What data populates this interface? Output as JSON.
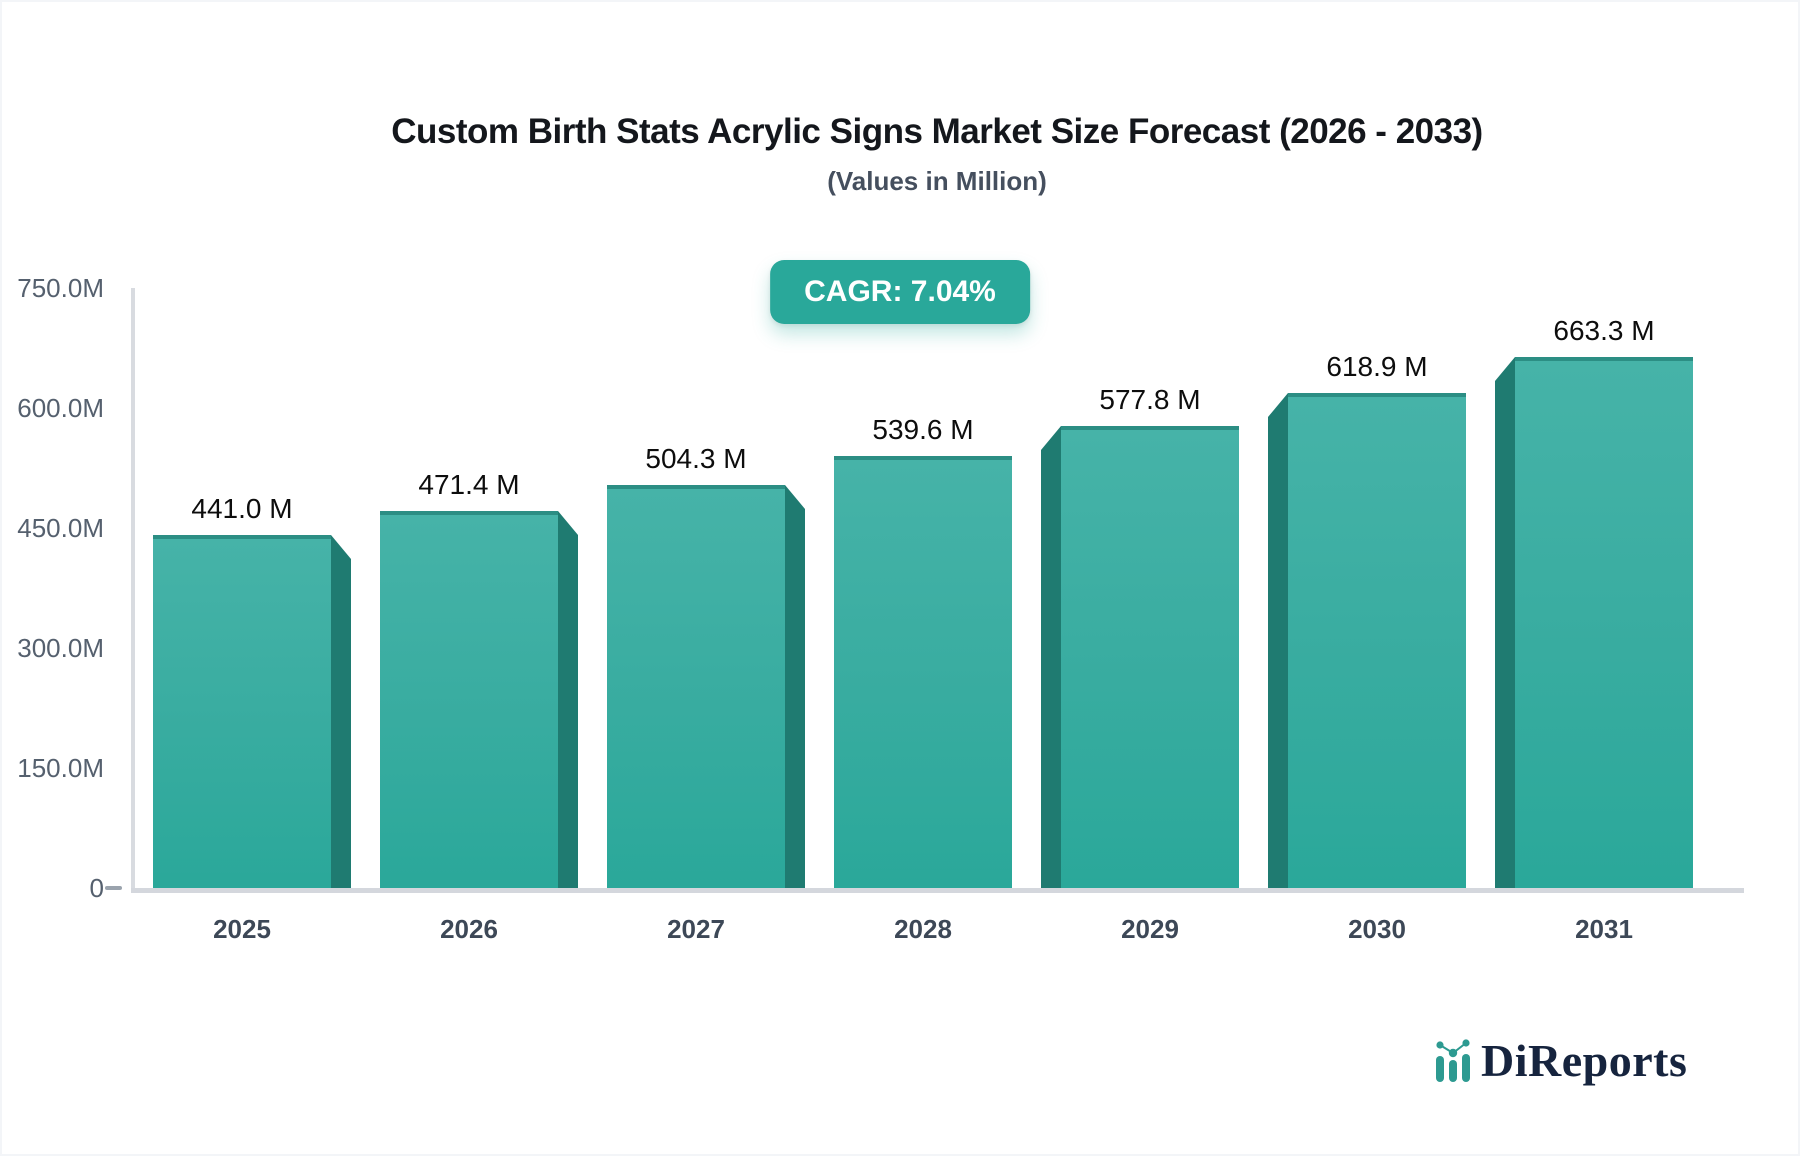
{
  "header": {
    "title": "Custom Birth Stats Acrylic Signs Market Size Forecast (2026 - 2033)",
    "subtitle": "(Values in Million)",
    "cagr_badge": "CAGR: 7.04%"
  },
  "chart_data": {
    "type": "bar",
    "title": "Custom Birth Stats Acrylic Signs Market Size Forecast (2026 - 2033)",
    "subtitle": "(Values in Million)",
    "cagr_percent": "7.04%",
    "categories": [
      "2025",
      "2026",
      "2027",
      "2028",
      "2029",
      "2030",
      "2031"
    ],
    "values": [
      441.0,
      471.4,
      504.3,
      539.6,
      577.8,
      618.9,
      663.3
    ],
    "value_labels": [
      "441.0 M",
      "471.4 M",
      "504.3 M",
      "539.6 M",
      "577.8 M",
      "618.9 M",
      "663.3 M"
    ],
    "y_ticks": [
      {
        "label": "750.0M",
        "value": 750
      },
      {
        "label": "600.0M",
        "value": 600
      },
      {
        "label": "450.0M",
        "value": 450
      },
      {
        "label": "300.0M",
        "value": 300
      },
      {
        "label": "150.0M",
        "value": 150
      },
      {
        "label": "0",
        "value": 0
      }
    ],
    "ylim": [
      0,
      750
    ],
    "xlabel": "",
    "ylabel": "",
    "grid": false,
    "legend": false,
    "style": "3d-bars, perspective side shading toward center bar"
  },
  "footer": {
    "brand_name": "DiReports",
    "brand_icon": "mini-bar-chart-logo"
  },
  "colors": {
    "accent_teal": "#29a89a",
    "bar_face_top": "#46b3a8",
    "bar_face_bottom": "#2aa89a",
    "bar_side": "#1f7b71",
    "bar_top_edge": "#2c8e84",
    "axis_line": "#d6d9de",
    "title_text": "#14171c",
    "subtitle_text": "#454f5e",
    "y_tick_text": "#55606e",
    "x_tick_text": "#3d4857",
    "value_text": "#0d0d0d",
    "badge_text": "#ffffff",
    "brand_navy": "#16243e",
    "brand_teal": "#2d9a91",
    "page_border": "#f3f5f8"
  }
}
